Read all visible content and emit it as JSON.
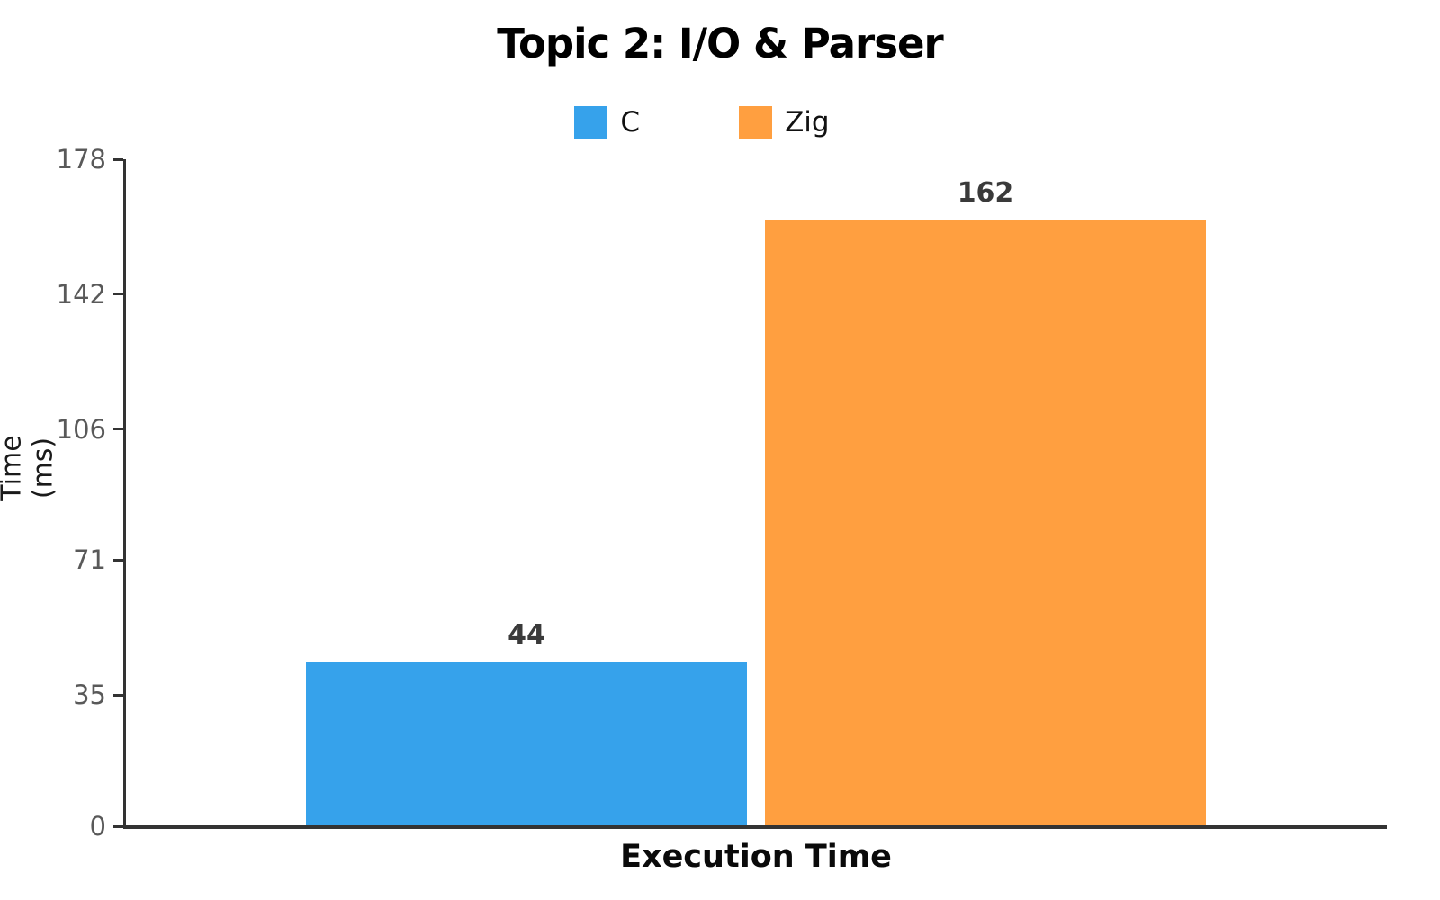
{
  "chart_data": {
    "type": "bar",
    "title": "Topic 2: I/O & Parser",
    "xlabel": "Execution Time",
    "ylabel": "Time (ms)",
    "categories": [
      "Execution Time"
    ],
    "series": [
      {
        "name": "C",
        "values": [
          44
        ],
        "color": "#36A2EB"
      },
      {
        "name": "Zig",
        "values": [
          162
        ],
        "color": "#FF9F40"
      }
    ],
    "yticks": [
      0,
      35,
      71,
      106,
      142,
      178
    ],
    "ylim": [
      0,
      178
    ],
    "grid": false,
    "legend_position": "top-center",
    "value_labels_shown": true
  },
  "colors": {
    "bar_c": "#36A2EB",
    "bar_zig": "#FF9F40",
    "axis_line": "#333333",
    "tick_label": "#595959",
    "value_label": "#3a3a3a",
    "background": "#ffffff"
  }
}
